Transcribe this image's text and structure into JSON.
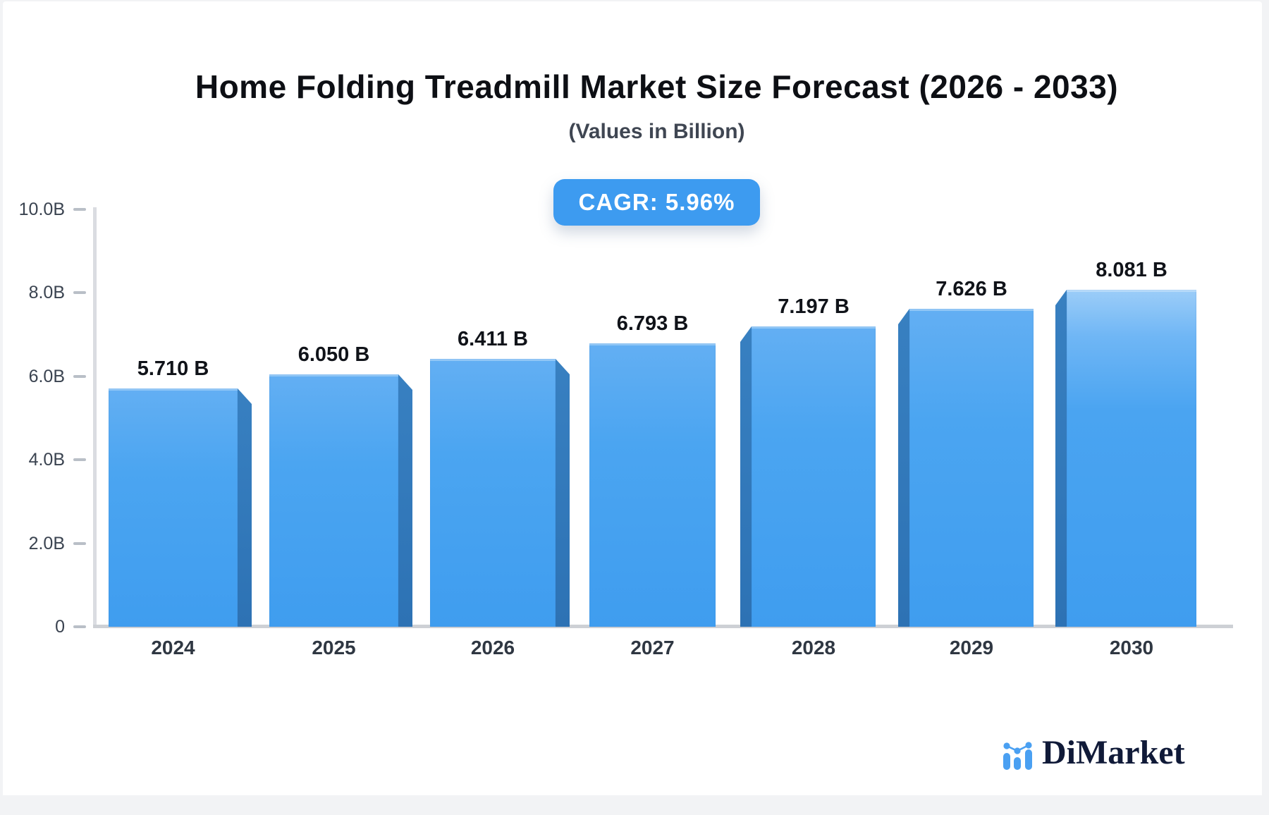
{
  "header": {
    "title": "Home Folding Treadmill Market Size Forecast (2026 - 2033)",
    "subtitle": "(Values in Billion)",
    "badge_label": "CAGR: 5.96%"
  },
  "chart_data": {
    "type": "bar",
    "title": "Home Folding Treadmill Market Size Forecast (2026 - 2033)",
    "subtitle": "(Values in Billion)",
    "cagr": "5.96%",
    "categories": [
      "2024",
      "2025",
      "2026",
      "2027",
      "2028",
      "2029",
      "2030"
    ],
    "values": [
      5.71,
      6.05,
      6.411,
      6.793,
      7.197,
      7.626,
      8.081
    ],
    "value_labels": [
      "5.710 B",
      "6.050 B",
      "6.411 B",
      "6.793 B",
      "7.197 B",
      "7.626 B",
      "8.081 B"
    ],
    "ylim": [
      0,
      10
    ],
    "ytick_values": [
      0,
      2,
      4,
      6,
      8,
      10
    ],
    "ytick_labels": [
      "0",
      "2.0B",
      "4.0B",
      "6.0B",
      "8.0B",
      "10.0B"
    ],
    "grid": false,
    "legend": false,
    "bar_style": "3d-beveled"
  },
  "footer": {
    "brand": "DiMarket"
  },
  "colors": {
    "accent_blue": "#3d9bf0",
    "bar_face": "#42a0f0",
    "bar_face_highlight": "#7fbef7",
    "bar_side": "#2f78ba",
    "axis_line": "#dadce1",
    "baseline": "#cdd0d5",
    "tick_dash": "#b9bfc7",
    "title_text": "#0d0f14",
    "axis_text": "#3a4350",
    "logo_navy": "#101a38",
    "background": "#ffffff"
  }
}
